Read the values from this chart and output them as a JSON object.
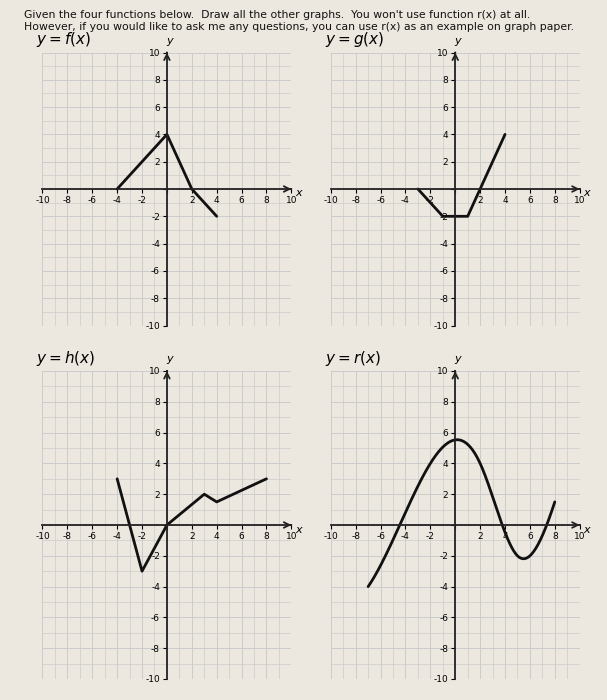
{
  "title_line1": "Given the four functions below.  Draw all the other graphs.  You won't use function r(x) at all.",
  "title_line2": "However, if you would like to ask me any questions, you can use r(x) as an example on graph paper.",
  "graphs": [
    {
      "label": "$y=f(x)$",
      "points": [
        [
          -4,
          0
        ],
        [
          0,
          4
        ],
        [
          2,
          0
        ],
        [
          4,
          -2
        ]
      ],
      "curve": false
    },
    {
      "label": "$y=g(x)$",
      "points": [
        [
          -3,
          0
        ],
        [
          -1,
          -2
        ],
        [
          1,
          -2
        ],
        [
          4,
          4
        ]
      ],
      "curve": false
    },
    {
      "label": "$y=h(x)$",
      "points": [
        [
          -4,
          3
        ],
        [
          -2,
          -3
        ],
        [
          0,
          0
        ],
        [
          3,
          2
        ],
        [
          4,
          1.5
        ],
        [
          8,
          3
        ]
      ],
      "curve": false
    },
    {
      "label": "$y=r(x)$",
      "points": [
        [
          -7,
          -4
        ],
        [
          -2,
          4
        ],
        [
          2,
          4
        ],
        [
          5,
          -2
        ],
        [
          6,
          -2
        ],
        [
          8,
          1.5
        ]
      ],
      "curve": true
    }
  ],
  "xlim": [
    -10,
    10
  ],
  "ylim": [
    -10,
    10
  ],
  "tick_step": 2,
  "line_color": "#111111",
  "line_width": 2.0,
  "grid_minor_color": "#cccccc",
  "grid_major_color": "#aaaaaa",
  "axis_color": "#222222",
  "bg_color": "#ede8df",
  "title_fontsize": 7.8,
  "label_fontsize": 11
}
